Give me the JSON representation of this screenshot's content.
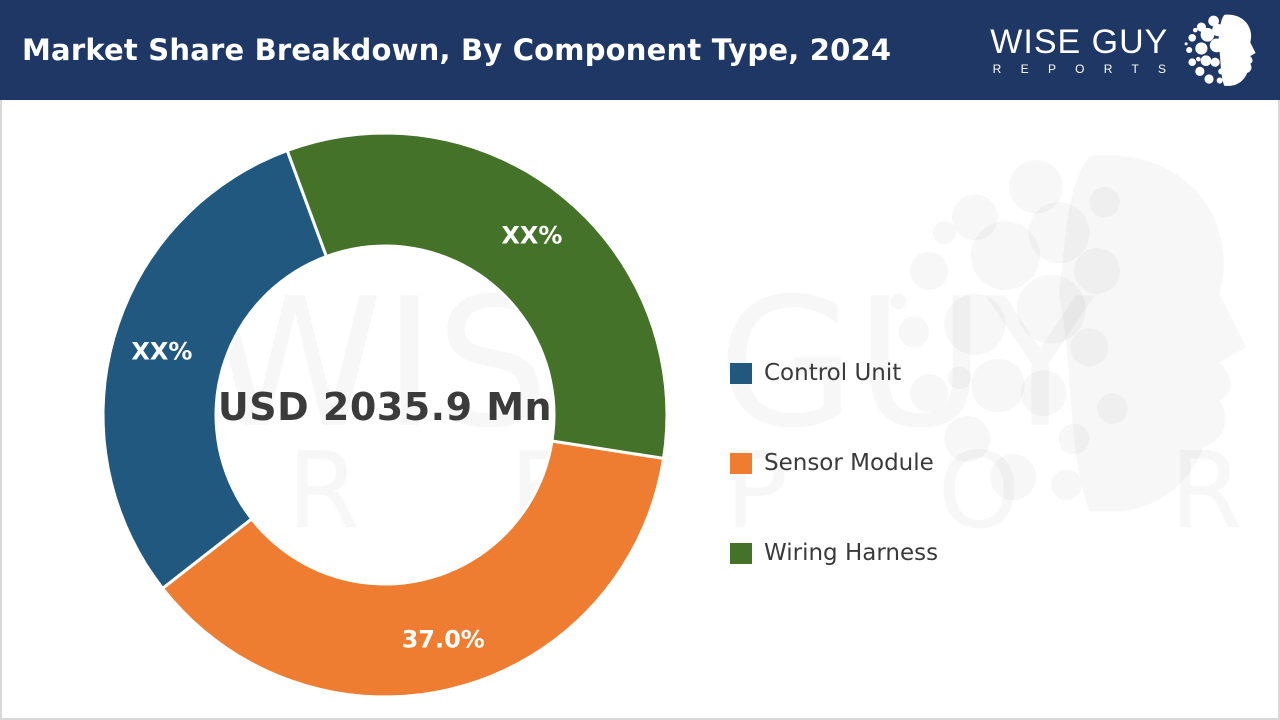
{
  "header": {
    "title": "Market Share Breakdown, By Component Type, 2024",
    "brand": {
      "line1": "WISE GUY",
      "line2": "R E P O R T S"
    }
  },
  "watermark": {
    "line1": "WISE GUY",
    "line2": "R E P O R T S"
  },
  "colors": {
    "header_bg": "#1F3764",
    "control_unit": "#20587F",
    "sensor_module": "#EE7D31",
    "wiring_harness": "#447229",
    "segment_label_text": "#FFFFFF",
    "center_text": "#3B3B3B",
    "legend_text": "#3A3A3A",
    "content_border": "#D8D8D8"
  },
  "chart_data": {
    "type": "pie",
    "subtype": "donut",
    "title": "Market Share Breakdown, By Component Type, 2024",
    "center_label": "USD 2035.9 Mn",
    "start_angle_deg": 110.3,
    "direction": "counterclockwise",
    "legend_position": "right",
    "series": [
      {
        "name": "Control Unit",
        "display_label": "XX%",
        "value_pct_est": 29.9,
        "color": "#20587F"
      },
      {
        "name": "Sensor Module",
        "display_label": "37.0%",
        "value_pct_est": 37.0,
        "color": "#EE7D31"
      },
      {
        "name": "Wiring Harness",
        "display_label": "XX%",
        "value_pct_est": 33.1,
        "color": "#447229"
      }
    ]
  }
}
